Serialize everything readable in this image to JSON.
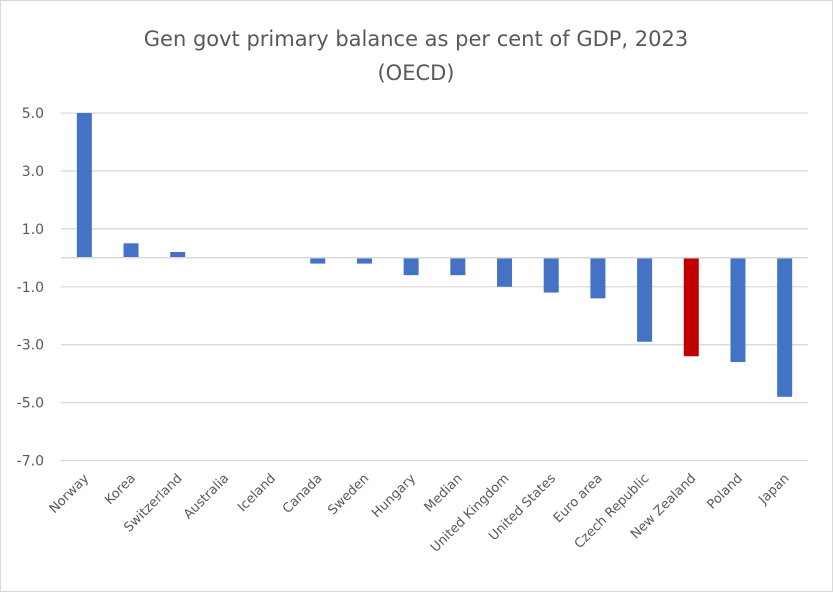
{
  "chart_data": {
    "type": "bar",
    "title": "Gen govt primary balance as per cent of GDP, 2023",
    "subtitle": "(OECD)",
    "xlabel": "",
    "ylabel": "",
    "ylim": [
      -7,
      5
    ],
    "yticks": [
      5,
      3,
      1,
      -1,
      -3,
      -5,
      -7
    ],
    "ytick_labels": [
      "5.0",
      "3.0",
      "1.0",
      "-1.0",
      "-3.0",
      "-5.0",
      "-7.0"
    ],
    "grid": true,
    "legend": "none",
    "categories": [
      "Norway",
      "Korea",
      "Switzerland",
      "Australia",
      "Iceland",
      "Canada",
      "Sweden",
      "Hungary",
      "Median",
      "United Kingdom",
      "United States",
      "Euro area",
      "Czech Republic",
      "New Zealand",
      "Poland",
      "Japan"
    ],
    "values": [
      5.0,
      0.5,
      0.2,
      0.0,
      0.0,
      -0.2,
      -0.2,
      -0.6,
      -0.6,
      -1.0,
      -1.2,
      -1.4,
      -2.9,
      -3.4,
      -3.6,
      -4.8
    ],
    "highlight": "New Zealand",
    "colors": {
      "bar": "#4472C4",
      "highlight": "#C00000",
      "grid": "#D9D9D9",
      "text": "#595959"
    }
  }
}
